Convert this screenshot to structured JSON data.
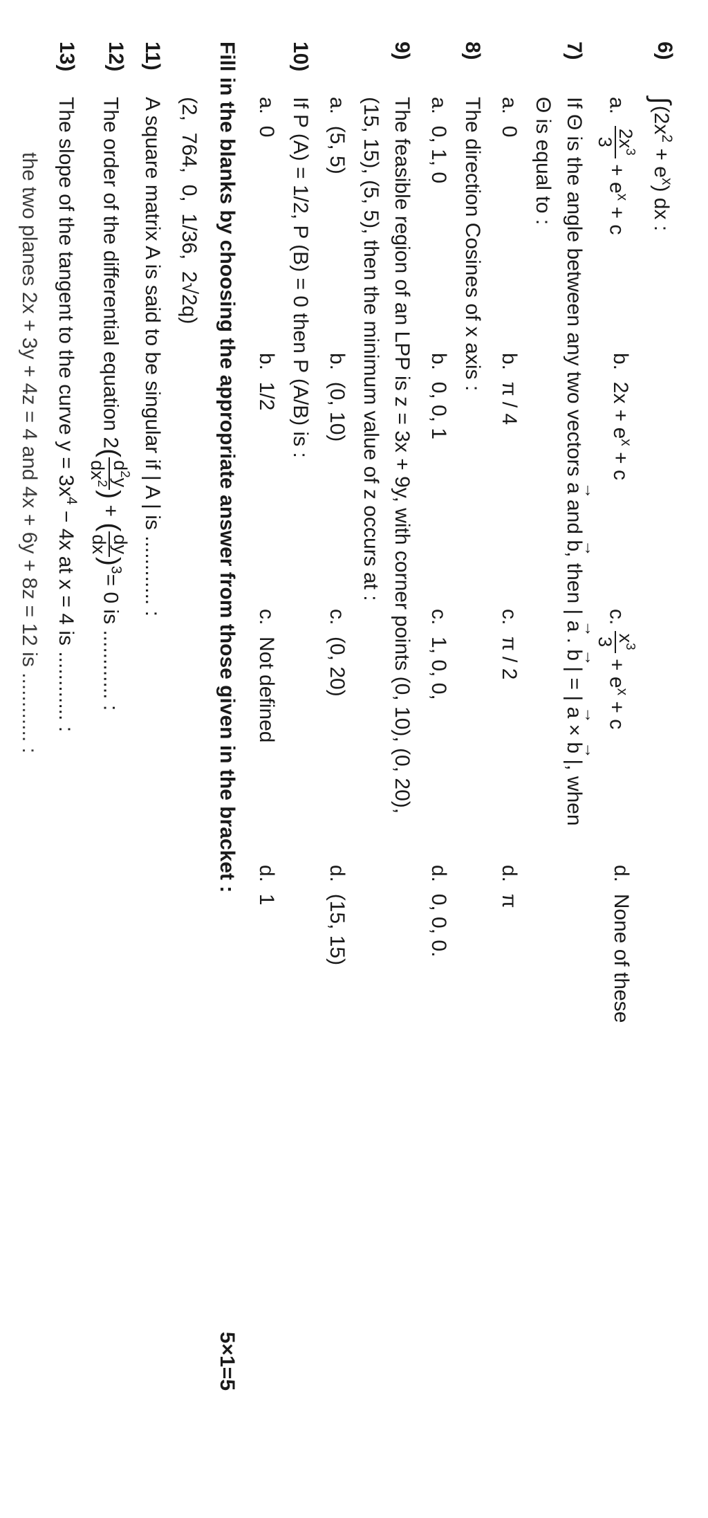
{
  "q6": {
    "num": "6)",
    "stem_html": "<span class='int'></span>(2x<sup>2</sup> + e<sup>x</sup>) dx&nbsp;:",
    "a": "a. &nbsp;<span class='frac'><span class='num'>2x<sup>3</sup></span><span class='den'>3</span></span> + e<sup>x</sup> + c",
    "b": "b. &nbsp;2x + e<sup>x</sup> + c",
    "c": "c. <span class='frac'><span class='num'>x<sup>3</sup></span><span class='den'>3</span></span> + e<sup>x</sup> + c",
    "d": "d. &nbsp;None of these"
  },
  "q7": {
    "num": "7)",
    "stem_html": "If &Theta; is the angle between any two vectors <span class='vec'>a</span> and <span class='vec'>b</span>, then | <span class='vec'>a</span> . <span class='vec'>b</span> | = | <span class='vec'>a</span> &times; <span class='vec'>b</span> |, when",
    "line2": "&Theta; is equal to&nbsp;:",
    "a": "a. &nbsp;0",
    "b": "b. &nbsp;&pi; / 4",
    "c": "c. &nbsp;&pi; / 2",
    "d": "d. &nbsp;&pi;"
  },
  "q8": {
    "num": "8)",
    "stem": "The direction Cosines of x axis :",
    "a": "a. &nbsp;0, 1, 0",
    "b": "b. &nbsp;0, 0, 1",
    "c": "c. &nbsp;1, 0, 0,",
    "d": "d. &nbsp;0, 0, 0."
  },
  "q9": {
    "num": "9)",
    "stem": "The feasible region of an LPP is z = 3x + 9y, with corner points (0, 10), (0, 20),",
    "line2": "(15, 15), (5, 5), then the minimum value of z occurs at :",
    "a": "a. &nbsp;(5, 5)",
    "b": "b. &nbsp;(0, 10)",
    "c": "c. &nbsp;(0, 20)",
    "d": "d. &nbsp;(15, 15)"
  },
  "q10": {
    "num": "10)",
    "stem": "If P (A) = 1/2, P (B) = 0 then P (A/B) is :",
    "a": "a. &nbsp;0",
    "b": "b. &nbsp;1/2",
    "c": "c. &nbsp;Not defined",
    "d": "d. &nbsp;1"
  },
  "fill": {
    "header": "Fill in the blanks by choosing the appropriate answer from those given in the bracket :",
    "marks": "5&times;1=5",
    "bracket": "(2, &nbsp;764, &nbsp;0, &nbsp;1/36, &nbsp;2<span class='sqrt'></span>2q)"
  },
  "q11": {
    "num": "11)",
    "stem_html": "A square matrix A is said to be singular if | A | is ............&nbsp;:"
  },
  "q12": {
    "num": "12)",
    "stem_html": "The order of the differential equation 2<span class='paren-big'>(</span><span class='frac'><span class='num'>d<sup>2</sup>y</span><span class='den'>dx<sup>2</sup></span></span><span class='paren-big'>)</span> + <span class='paren-big'>(</span><span class='frac'><span class='num'>dy</span><span class='den'>dx</span></span><span class='paren-big'>)</span><sup>3</sup>= 0 is ............&nbsp;:"
  },
  "q13": {
    "num": "13)",
    "stem_html": "The slope of the tangent to the curve y = 3x<sup>4</sup> &minus; 4x at x = 4 is ............&nbsp;:"
  },
  "lastline": "the two planes 2x + 3y + 4z = 4 and 4x + 6y + 8z = 12 is ............&nbsp;:"
}
